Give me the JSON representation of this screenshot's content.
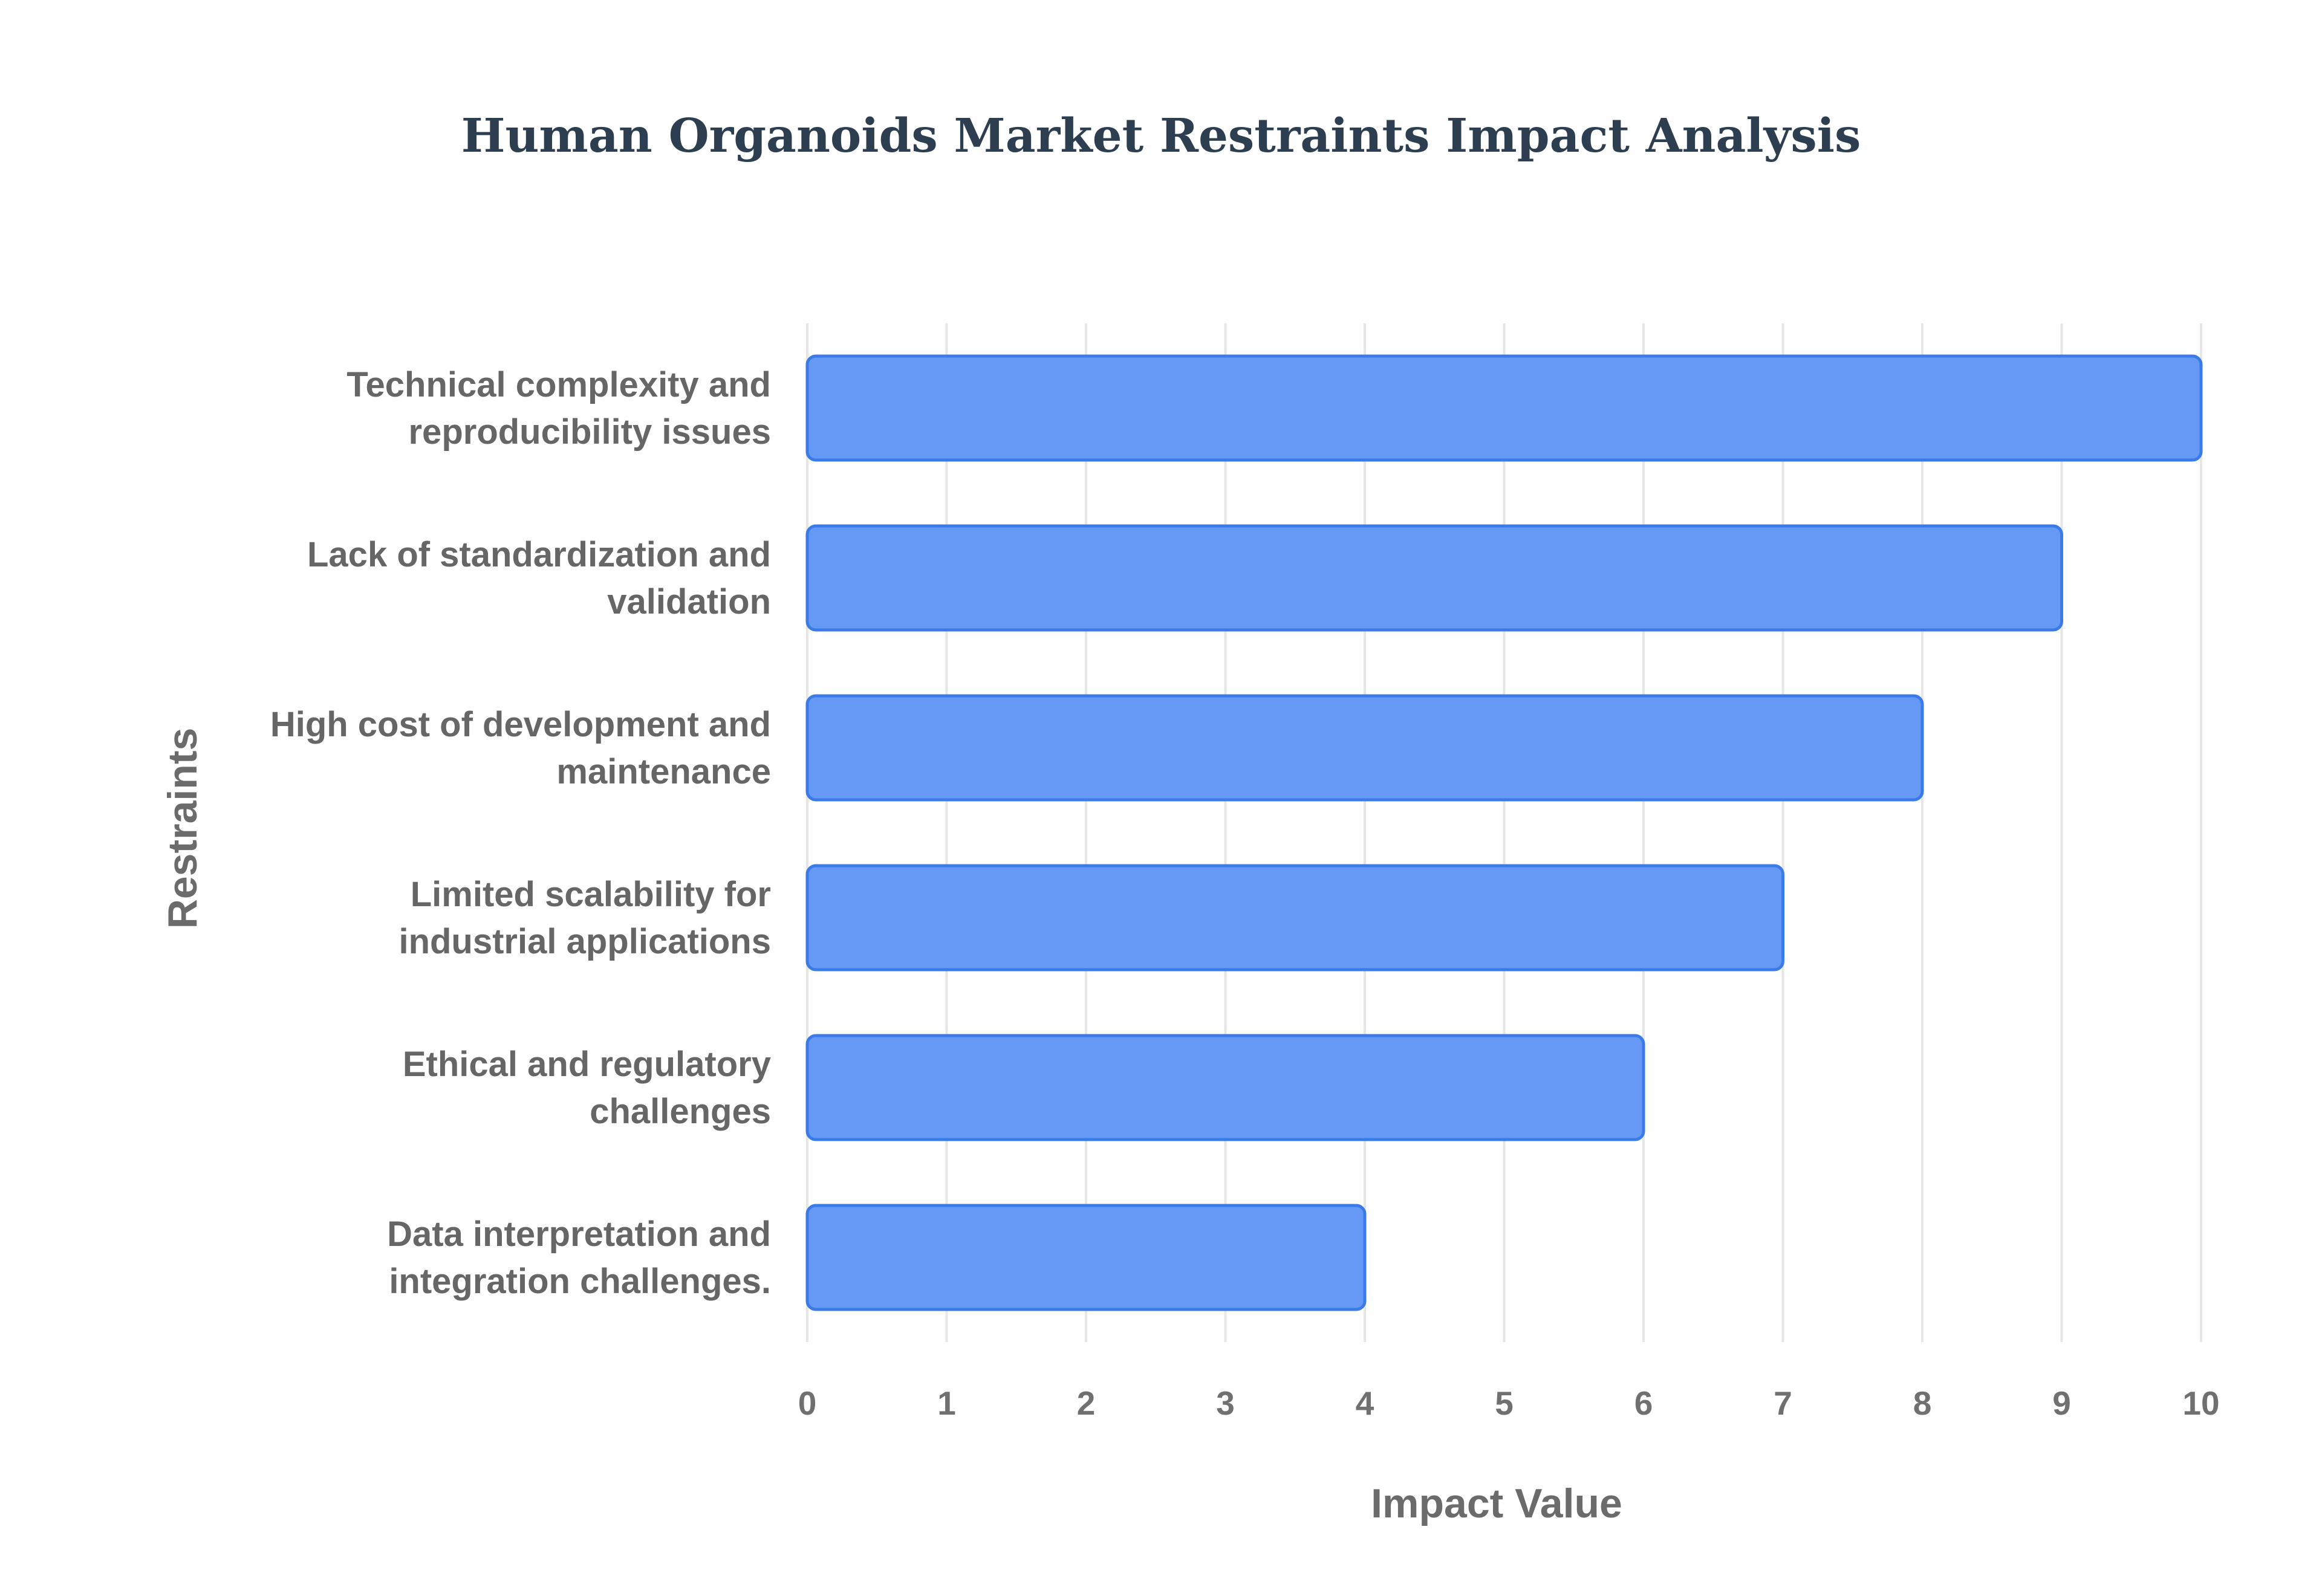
{
  "colors": {
    "bar_fill": "#6599f5",
    "bar_stroke": "#3b7be8",
    "grid": "#e6e6e6",
    "title": "#2c3e50"
  },
  "chart_data": {
    "type": "bar",
    "orientation": "horizontal",
    "title": "Human Organoids Market Restraints Impact Analysis",
    "xlabel": "Impact Value",
    "ylabel": "Restraints",
    "xlim": [
      0,
      10
    ],
    "x_ticks": [
      "0",
      "1",
      "2",
      "3",
      "4",
      "5",
      "6",
      "7",
      "8",
      "9",
      "10"
    ],
    "grid": true,
    "legend": false,
    "categories": [
      [
        "Technical complexity and",
        "reproducibility issues"
      ],
      [
        "Lack of standardization and",
        "validation"
      ],
      [
        "High cost of development and",
        "maintenance"
      ],
      [
        "Limited scalability for",
        "industrial applications"
      ],
      [
        "Ethical and regulatory",
        "challenges"
      ],
      [
        "Data interpretation and",
        "integration challenges."
      ]
    ],
    "values": [
      10,
      9,
      8,
      7,
      6,
      4
    ]
  }
}
